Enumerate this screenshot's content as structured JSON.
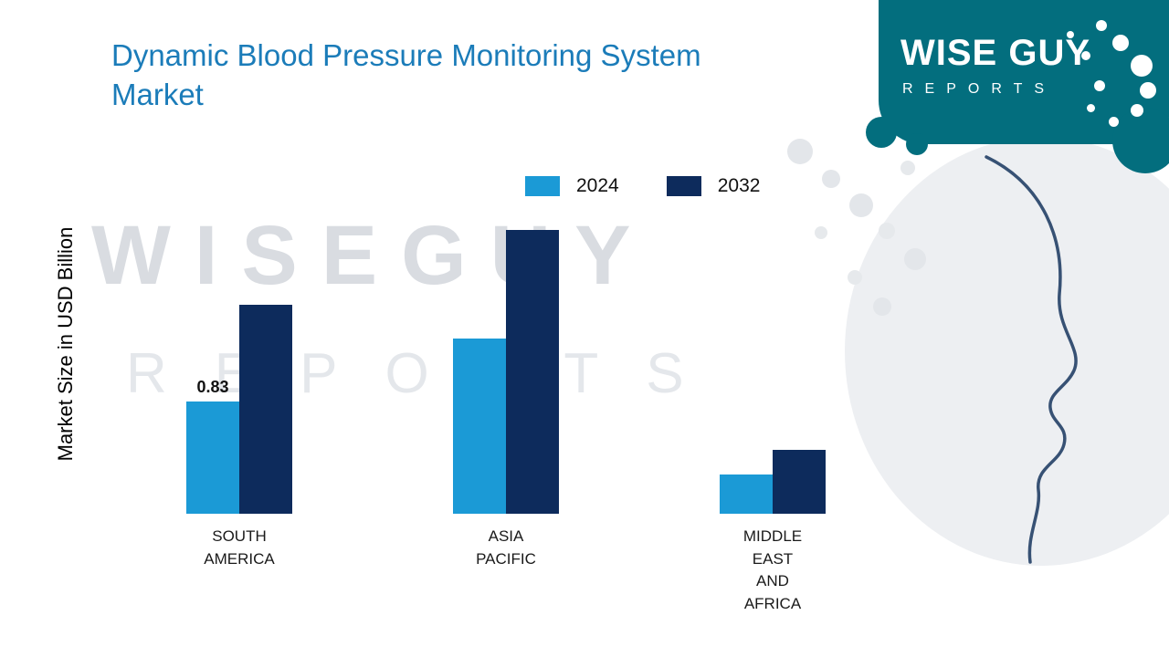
{
  "title": "Dynamic Blood Pressure Monitoring System Market",
  "logo": {
    "line1": "WISE GUY",
    "line2": "REPORTS"
  },
  "watermark": {
    "line1": "WISEGUY",
    "line2": "REPORTS"
  },
  "colors": {
    "series_2024": "#1b9ad6",
    "series_2032": "#0d2b5c",
    "title_blue": "#1b7cb9",
    "logo_teal": "#036e7e",
    "watermark_gray": "#d9dce1"
  },
  "chart_data": {
    "type": "bar",
    "title": "Dynamic Blood Pressure Monitoring System Market",
    "ylabel": "Market Size in USD Billion",
    "xlabel": "",
    "ylim": [
      0,
      2.2
    ],
    "grid": false,
    "legend_position": "top",
    "categories": [
      "SOUTH AMERICA",
      "ASIA PACIFIC",
      "MIDDLE EAST AND AFRICA"
    ],
    "category_labels": [
      "SOUTH\nAMERICA",
      "ASIA\nPACIFIC",
      "MIDDLE\nEAST\nAND\nAFRICA"
    ],
    "series": [
      {
        "name": "2024",
        "color": "#1b9ad6",
        "values": [
          0.83,
          1.3,
          0.29
        ]
      },
      {
        "name": "2032",
        "color": "#0d2b5c",
        "values": [
          1.55,
          2.1,
          0.47
        ]
      }
    ],
    "bar_labels": [
      {
        "category_index": 0,
        "series_index": 0,
        "text": "0.83"
      }
    ]
  }
}
